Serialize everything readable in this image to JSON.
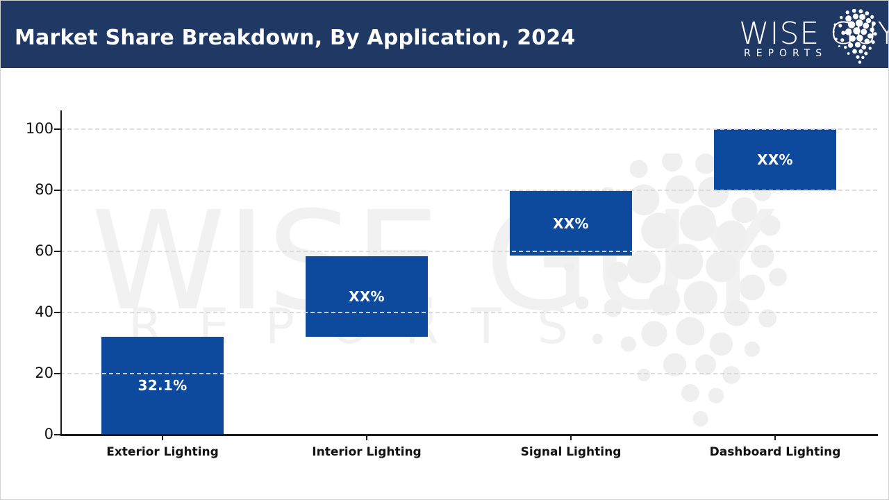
{
  "header": {
    "title": "Market Share Breakdown, By Application, 2024",
    "bg_color": "#1f3864",
    "logo": {
      "line1": "WISE GUY",
      "line2": "REPORTS"
    }
  },
  "watermark": {
    "line1": "WISE GUY",
    "line2": "REPORTS"
  },
  "chart_data": {
    "type": "bar",
    "subtype": "waterfall",
    "title": "Market Share Breakdown, By Application, 2024",
    "categories": [
      "Exterior Lighting",
      "Interior Lighting",
      "Signal Lighting",
      "Dashboard Lighting"
    ],
    "segments": [
      {
        "category": "Exterior Lighting",
        "start": 0,
        "end": 32.1,
        "label": "32.1%"
      },
      {
        "category": "Interior Lighting",
        "start": 32.1,
        "end": 58.5,
        "label": "XX%"
      },
      {
        "category": "Signal Lighting",
        "start": 58.6,
        "end": 79.8,
        "label": "XX%"
      },
      {
        "category": "Dashboard Lighting",
        "start": 79.9,
        "end": 100,
        "label": "XX%"
      }
    ],
    "y_ticks": [
      0,
      20,
      40,
      60,
      80,
      100
    ],
    "ylim": [
      0,
      105
    ],
    "xlabel": "",
    "ylabel": "",
    "grid": "dashed-horizontal",
    "legend": "none",
    "bar_color": "#0d4a9e",
    "bar_label_color": "#ffffff",
    "axis_color": "#1a1a1a"
  }
}
